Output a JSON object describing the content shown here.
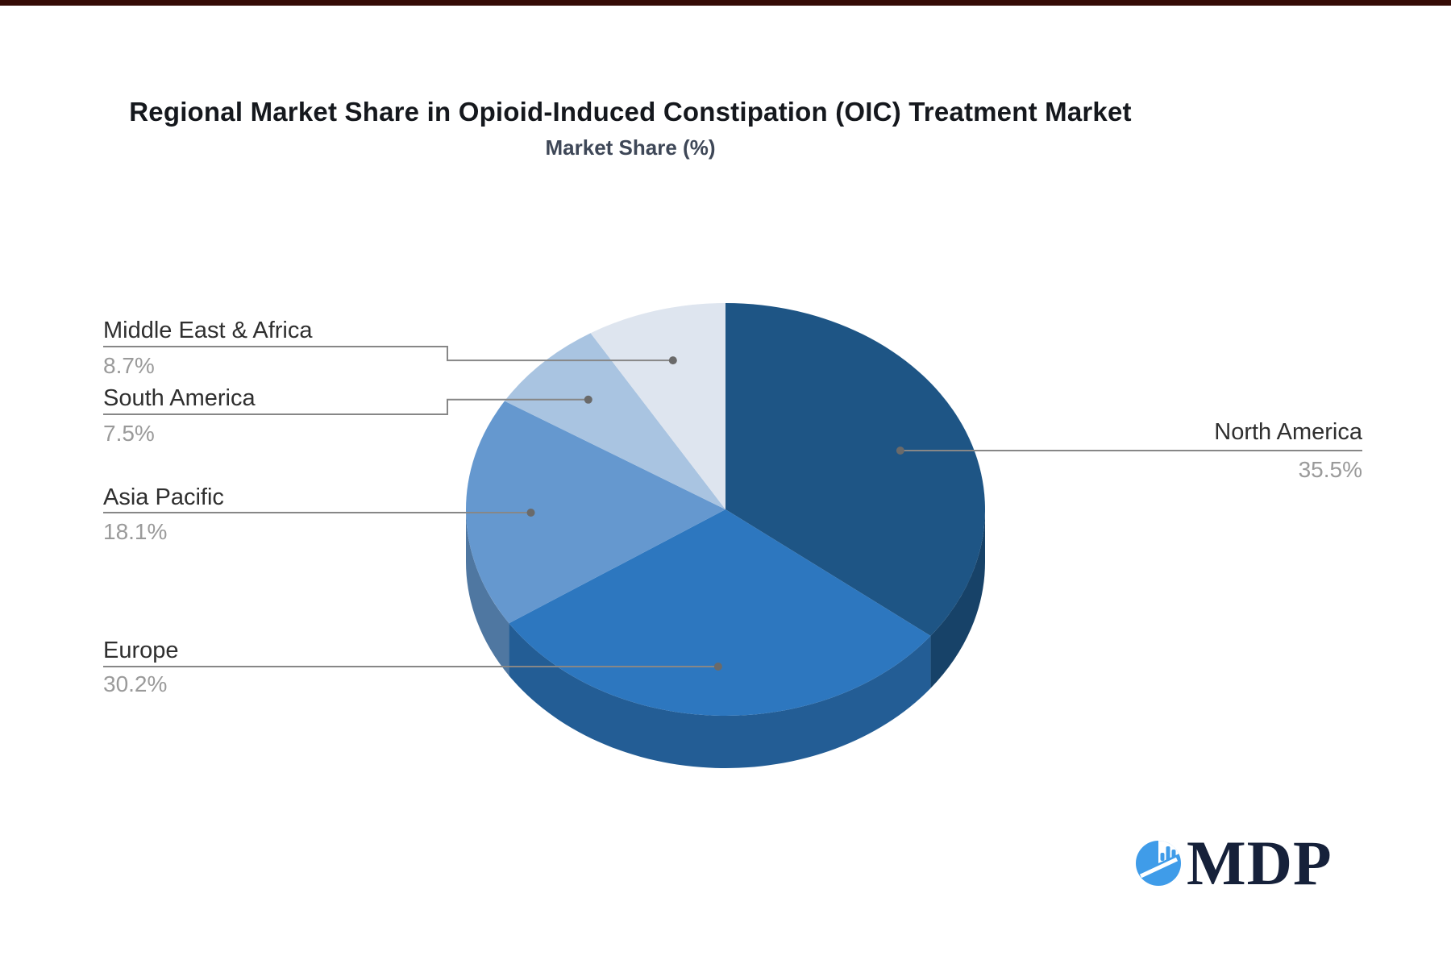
{
  "page": {
    "top_bar_color": "#350b06",
    "background": "#ffffff"
  },
  "header": {
    "title": "Regional Market Share in Opioid-Induced Constipation (OIC) Treatment Market",
    "subtitle": "Market Share (%)"
  },
  "chart_data": {
    "type": "pie",
    "style": "3d",
    "title": "Regional Market Share in Opioid-Induced Constipation (OIC) Treatment Market",
    "subtitle": "Market Share (%)",
    "unit": "%",
    "start_angle_deg": 90,
    "direction": "clockwise",
    "legend_position": "callout-labels",
    "slices": [
      {
        "label": "North America",
        "value": 35.5,
        "value_label": "35.5%",
        "color": "#1e5585"
      },
      {
        "label": "Europe",
        "value": 30.2,
        "value_label": "30.2%",
        "color": "#2d77bf"
      },
      {
        "label": "Asia Pacific",
        "value": 18.1,
        "value_label": "18.1%",
        "color": "#6598cf"
      },
      {
        "label": "South America",
        "value": 7.5,
        "value_label": "7.5%",
        "color": "#a9c4e1"
      },
      {
        "label": "Middle East & Africa",
        "value": 8.7,
        "value_label": "8.7%",
        "color": "#dee5ef"
      }
    ],
    "callout_line_color": "#878787",
    "callout_dot_color": "#6a6a6a",
    "label_text_color": "#2f2f2f",
    "value_text_color": "#9a9a9a"
  },
  "logo": {
    "text": "MDP",
    "icon": "pie-bar-chart-icon",
    "icon_color": "#3f9ce9",
    "text_color": "#16213a"
  }
}
